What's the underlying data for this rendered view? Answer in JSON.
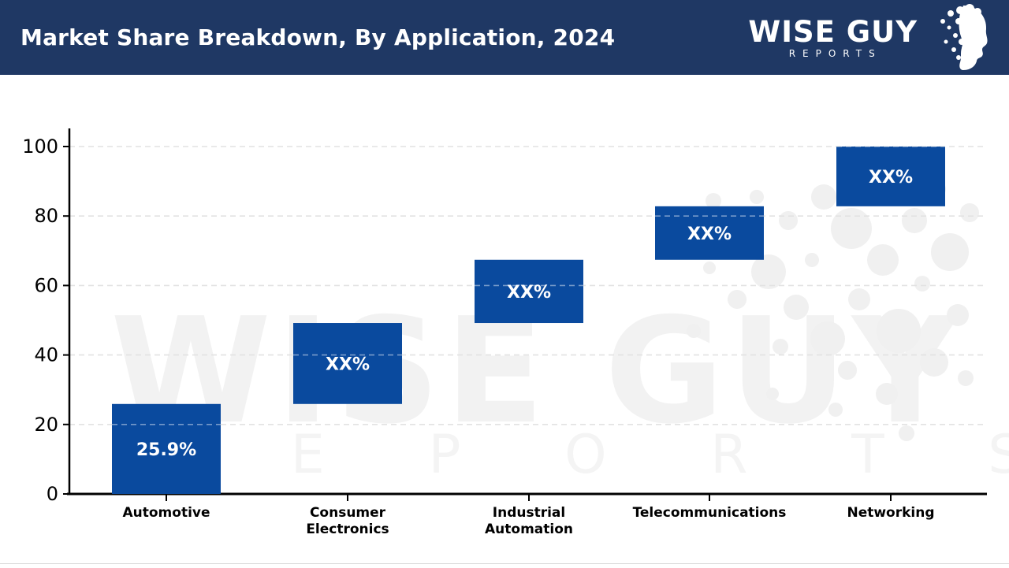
{
  "header": {
    "title": "Market Share Breakdown, By Application, 2024",
    "bg_color": "#1f3864",
    "logo": {
      "line1": "WISE GUY",
      "line2": "REPORTS"
    }
  },
  "watermark": {
    "line1": "WISE GUY",
    "line2": "R E P O R T S"
  },
  "chart_data": {
    "type": "bar",
    "subtype": "waterfall",
    "title": "Market Share Breakdown, By Application, 2024",
    "categories": [
      "Automotive",
      "Consumer Electronics",
      "Industrial Automation",
      "Telecommunications",
      "Networking"
    ],
    "category_label_lines": [
      [
        "Automotive"
      ],
      [
        "Consumer",
        "Electronics"
      ],
      [
        "Industrial",
        "Automation"
      ],
      [
        "Telecommunications"
      ],
      [
        "Networking"
      ]
    ],
    "segments": [
      {
        "category": "Automotive",
        "start": 0,
        "end": 25.9,
        "label": "25.9%"
      },
      {
        "category": "Consumer Electronics",
        "start": 25.9,
        "end": 49.2,
        "label": "XX%"
      },
      {
        "category": "Industrial Automation",
        "start": 49.2,
        "end": 67.4,
        "label": "XX%"
      },
      {
        "category": "Telecommunications",
        "start": 67.4,
        "end": 82.8,
        "label": "XX%"
      },
      {
        "category": "Networking",
        "start": 82.8,
        "end": 100,
        "label": "XX%"
      }
    ],
    "xlabel": "",
    "ylabel": "",
    "ylim": [
      0,
      105
    ],
    "yticks": [
      0,
      20,
      40,
      60,
      80,
      100
    ],
    "grid": "dashed-horizontal",
    "legend": "none",
    "bar_color": "#0a4a9e",
    "value_label_color": "#ffffff",
    "axis_color": "#000000",
    "tick_label_color": "#000000",
    "gridline_color": "#e2e2e2"
  }
}
